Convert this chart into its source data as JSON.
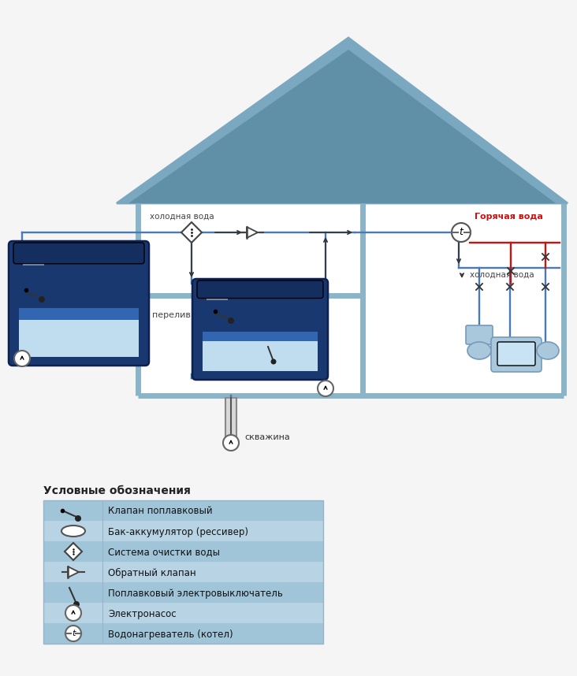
{
  "bg_color": "#f5f5f5",
  "wall_color": "#8ab4c8",
  "roof_outer_color": "#7aa8c0",
  "roof_inner_color": "#6090a8",
  "tank_dark_blue": "#1a3870",
  "tank_mid_blue": "#2255a0",
  "tank_water_blue": "#c0ddf0",
  "tank_stripe_blue": "#3366b0",
  "pipe_blue": "#4a7ab5",
  "pipe_red": "#cc1111",
  "legend_bg1": "#a0c4d8",
  "legend_bg2": "#b8d4e4",
  "legend_title": "Условные обозначения",
  "legend_items": [
    "Клапан поплавковый",
    "Бак-аккумулятор (рессивер)",
    "Система очистки воды",
    "Обратный клапан",
    "Поплавковый электровыключатель",
    "Электронасос",
    "Водонагреватель (котел)"
  ],
  "lbl_kholodnaya": "холодная вода",
  "lbl_goryachaya": "Горячая вода",
  "lbl_pereliw": "перелив",
  "lbl_skvazhina": "скважина"
}
